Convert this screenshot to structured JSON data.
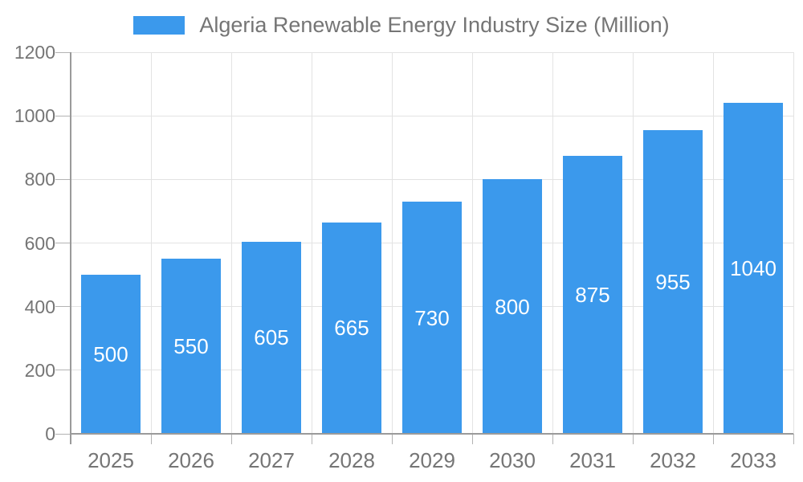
{
  "chart_data": {
    "type": "bar",
    "title": "Algeria Renewable Energy Industry Size (Million)",
    "legend_position": "top",
    "categories": [
      "2025",
      "2026",
      "2027",
      "2028",
      "2029",
      "2030",
      "2031",
      "2032",
      "2033"
    ],
    "values": [
      500,
      550,
      605,
      665,
      730,
      800,
      875,
      955,
      1040
    ],
    "xlabel": "",
    "ylabel": "",
    "ylim": [
      0,
      1200
    ],
    "y_ticks": [
      0,
      200,
      400,
      600,
      800,
      1000,
      1200
    ],
    "grid": true,
    "bar_color": "#3b99ec",
    "value_label_color": "#ffffff",
    "axis_text_color": "#757575",
    "grid_color": "#e3e3e3",
    "tick_color": "#b3b3b3",
    "axis_line_color": "#9a9a9a",
    "background_color": "#ffffff"
  }
}
